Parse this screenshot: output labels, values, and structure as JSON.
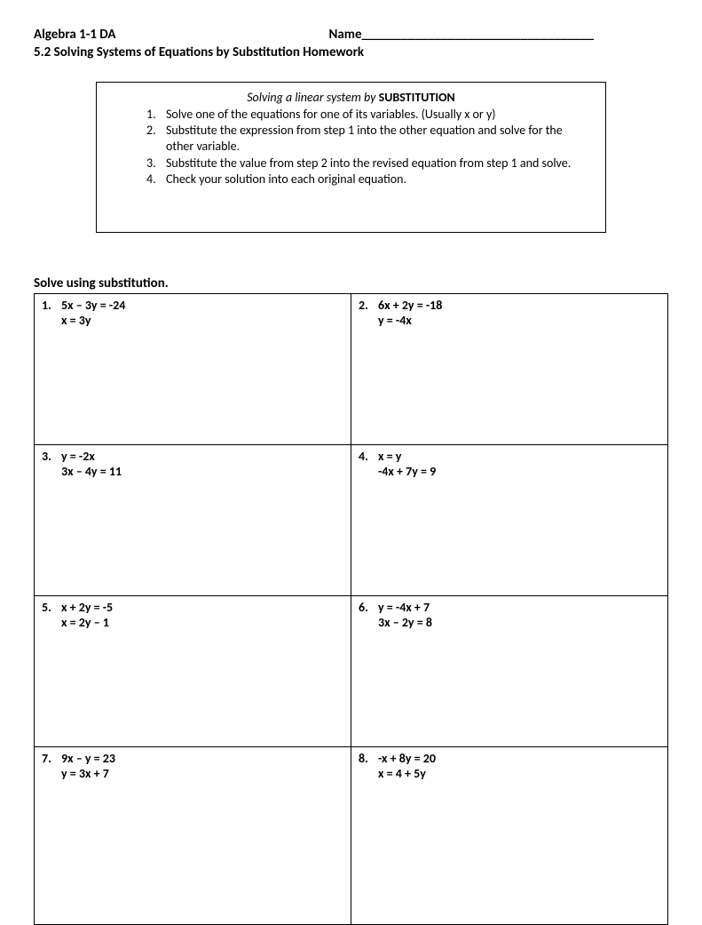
{
  "header": {
    "course": "Algebra 1-1 DA",
    "name_label": "Name",
    "name_line": "___________________________________"
  },
  "subtitle": "5.2 Solving Systems of Equations by Substitution Homework",
  "instructions": {
    "title_italic": "Solving a linear system by ",
    "title_bold": "SUBSTITUTION",
    "steps": [
      "Solve one of the equations for one of its variables. (Usually x or y)",
      "Substitute the expression from step 1 into the other equation and solve for the other variable.",
      "Substitute the value from step 2 into the revised equation from step 1 and solve.",
      "Check your solution into each original equation."
    ]
  },
  "section_title": "Solve using substitution.",
  "problems": [
    {
      "num": "1.",
      "eq1": "5x – 3y = -24",
      "eq2": "x = 3y"
    },
    {
      "num": "2.",
      "eq1": "6x + 2y = -18",
      "eq2": "y = -4x"
    },
    {
      "num": "3.",
      "eq1": "y = -2x",
      "eq2": "3x – 4y = 11"
    },
    {
      "num": "4.",
      "eq1": "x = y",
      "eq2": "-4x + 7y = 9"
    },
    {
      "num": "5.",
      "eq1": "x + 2y = -5",
      "eq2": "x = 2y – 1"
    },
    {
      "num": "6.",
      "eq1": "y = -4x + 7",
      "eq2": "3x – 2y = 8"
    },
    {
      "num": "7.",
      "eq1": "9x – y = 23",
      "eq2": "y = 3x + 7"
    },
    {
      "num": "8.",
      "eq1": "-x + 8y = 20",
      "eq2": "x = 4 + 5y"
    }
  ]
}
